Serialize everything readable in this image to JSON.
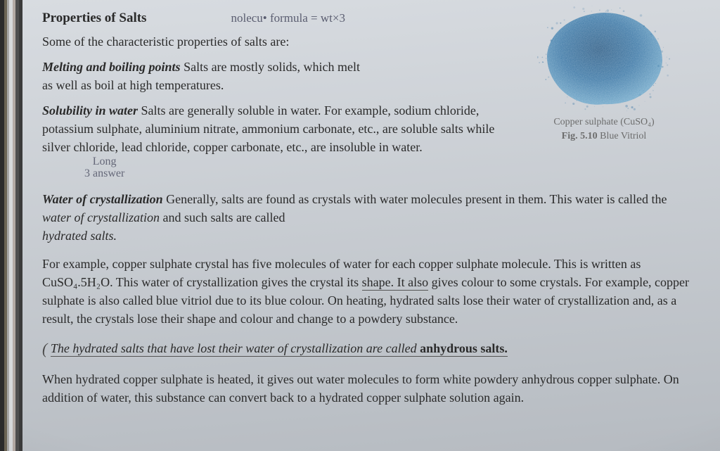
{
  "page": {
    "background_gradient_top": "#d8dce1",
    "background_gradient_bottom": "#b6bbc1",
    "text_color": "#2a2a2a",
    "caption_color": "#6c6c6c",
    "hand_color": "#656879",
    "spine_colors": [
      "#2b2b2b",
      "#6b6454",
      "#a7a7a7",
      "#d7d9db",
      "#b4aaa5",
      "#4f4f4f",
      "#3b3b3b"
    ],
    "vignette_opacity": 0.15
  },
  "heading": "Properties of Salts",
  "formula_note": "nolecu•  formula  =  wt×3",
  "intro": "Some of the characteristic properties of salts are:",
  "melting": {
    "head": "Melting and boiling points",
    "body1": "  Salts are mostly solids, which melt",
    "body2": "as well as boil at high temperatures."
  },
  "solubility": {
    "head": "Solubility in water",
    "body": "  Salts are generally soluble in water. For example, sodium chloride, potassium sulphate, aluminium nitrate, ammonium carbonate, etc., are soluble salts while silver chloride, lead chloride, copper carbonate, etc., are insoluble in water."
  },
  "figure": {
    "caption_main": "Copper sulphate (CuSO₄)",
    "caption_sub_left": "Fig. 5.10",
    "caption_sub_right": "   Blue Vitriol",
    "crystal_colors": {
      "core": "#2f5e87",
      "mid": "#3d78a6",
      "edge": "#6fa6c8",
      "speckle": "#d2e6f0"
    }
  },
  "long_note_l1": "Long",
  "long_note_l2": "3 answer",
  "crystallization": {
    "head": "Water of crystallization",
    "body_a": "  Generally, salts are found as crystals with water molecules present in them. This water is called the ",
    "body_b_ital": "water of crystallization",
    "body_c": " and such salts are called ",
    "body_d_ital": "hydrated salts.",
    "example_a": "For example, copper sulphate crystal has five molecules of water for each copper sulphate molecule. This is written as CuSO₄.5H₂O. This water of crystallization gives the crystal its ",
    "example_b_under": "shape. It also",
    "example_c": " gives colour to some crystals. For example, copper sulphate is also called blue vitriol due to its blue colour. On heating, hydrated salts lose their water of crystallization and, as a result, the crystals lose their shape and colour and change to a powdery substance."
  },
  "anhydrous_line_a": "The hydrated salts that have lost their water of crystallization are called ",
  "anhydrous_line_b_bold": "anhydrous salts.",
  "final_para": "When hydrated copper sulphate is heated, it gives out water molecules to form white powdery anhydrous copper sulphate. On addition of water, this substance can convert back to a hydrated copper sulphate solution again."
}
